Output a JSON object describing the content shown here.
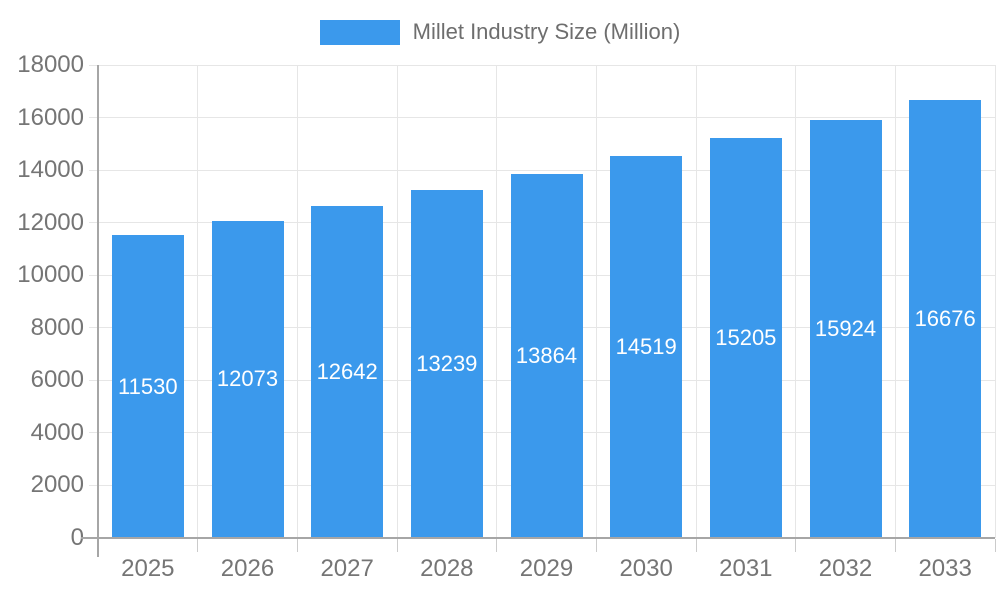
{
  "chart_data": {
    "type": "bar",
    "title": "",
    "legend": {
      "label": "Millet Industry Size (Million)",
      "position": "top-center"
    },
    "categories": [
      "2025",
      "2026",
      "2027",
      "2028",
      "2029",
      "2030",
      "2031",
      "2032",
      "2033"
    ],
    "series": [
      {
        "name": "Millet Industry Size (Million)",
        "values": [
          11530,
          12073,
          12642,
          13239,
          13864,
          14519,
          15205,
          15924,
          16676
        ]
      }
    ],
    "bar_value_labels": [
      "11530",
      "12073",
      "12642",
      "13239",
      "13864",
      "14519",
      "15205",
      "15924",
      "16676"
    ],
    "xlabel": "",
    "ylabel": "",
    "ylim": [
      0,
      18000
    ],
    "yticks": [
      "0",
      "2000",
      "4000",
      "6000",
      "8000",
      "10000",
      "12000",
      "14000",
      "16000",
      "18000"
    ],
    "ytick_values": [
      0,
      2000,
      4000,
      6000,
      8000,
      10000,
      12000,
      14000,
      16000,
      18000
    ],
    "grid": true,
    "colors": {
      "bar": "#3B99EC",
      "bar_label": "#FFFFFF",
      "axis_text": "#757575",
      "legend_text": "#6E6E6E",
      "gridline": "#E6E6E6",
      "axis_line": "#A6A6A6",
      "minor_tick": "#CBCBCB",
      "background": "#FFFFFF"
    }
  }
}
